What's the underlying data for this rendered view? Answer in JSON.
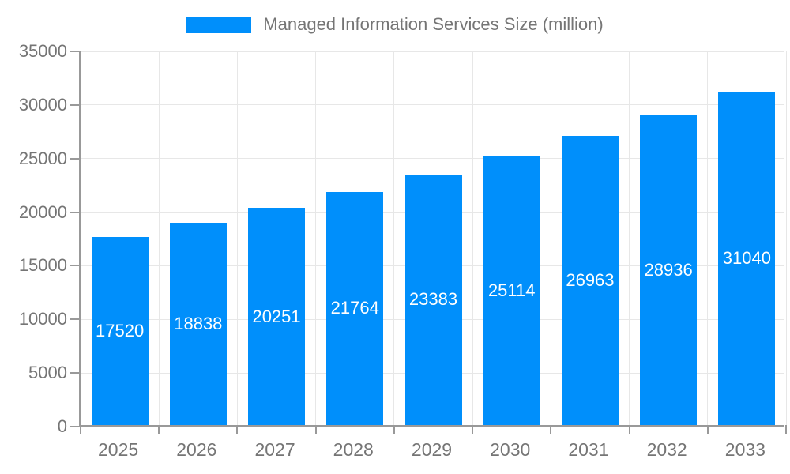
{
  "legend": {
    "label": "Managed Information Services Size (million)"
  },
  "colors": {
    "bar": "#008FFB",
    "grid": "#E7E7E7",
    "axis_line": "#999999",
    "axis_label": "#757575",
    "bar_value_label": "#FFFFFF",
    "background": "#FFFFFF"
  },
  "chart_data": {
    "type": "bar",
    "title": "Managed Information Services Size (million)",
    "categories": [
      "2025",
      "2026",
      "2027",
      "2028",
      "2029",
      "2030",
      "2031",
      "2032",
      "2033"
    ],
    "values": [
      17520,
      18838,
      20251,
      21764,
      23383,
      25114,
      26963,
      28936,
      31040
    ],
    "series": [
      {
        "name": "Managed Information Services Size (million)",
        "values": [
          17520,
          18838,
          20251,
          21764,
          23383,
          25114,
          26963,
          28936,
          31040
        ]
      }
    ],
    "xlabel": "",
    "ylabel": "",
    "ylim": [
      0,
      35000
    ],
    "yticks": [
      0,
      5000,
      10000,
      15000,
      20000,
      25000,
      30000,
      35000
    ],
    "grid": true,
    "legend_position": "top",
    "value_labels": "inside-center-white"
  }
}
